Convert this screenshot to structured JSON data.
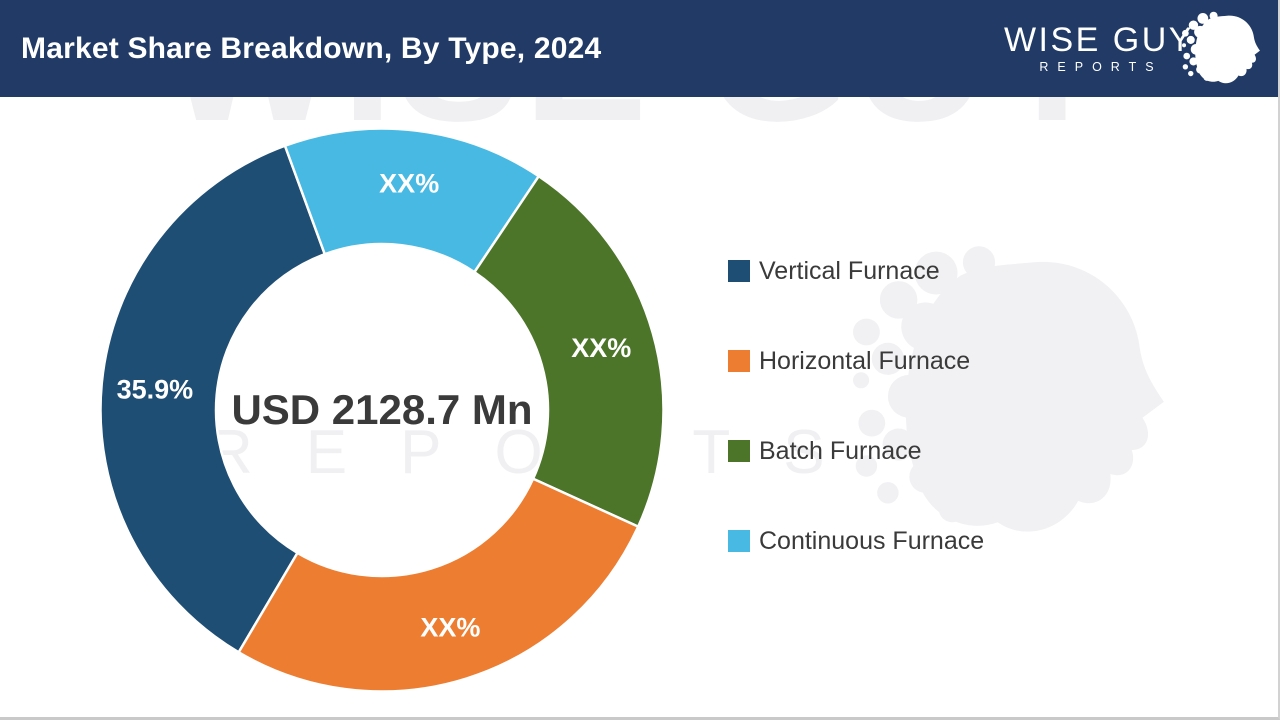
{
  "header": {
    "title": "Market Share Breakdown, By Type, 2024",
    "logo": {
      "line1": "WISE GUY",
      "line2": "REPORTS"
    }
  },
  "watermark": {
    "line1": "WISE GUY",
    "line2": "REPORTS"
  },
  "chart_data": {
    "type": "pie",
    "subtype": "donut",
    "title": "Market Share Breakdown, By Type, 2024",
    "center_label": "USD 2128.7 Mn",
    "legend_position": "right",
    "start_angle_deg": 210.6,
    "draw_order": [
      0,
      3,
      2,
      1
    ],
    "segments": [
      {
        "label": "Vertical Furnace",
        "value": 35.9,
        "display": "35.9%",
        "color": "#1F4E74"
      },
      {
        "label": "Horizontal Furnace",
        "value": 26.7,
        "display": "XX%",
        "color": "#ED7D31"
      },
      {
        "label": "Batch Furnace",
        "value": 22.4,
        "display": "XX%",
        "color": "#4C7529"
      },
      {
        "label": "Continuous Furnace",
        "value": 15.0,
        "display": "XX%",
        "color": "#47B9E3"
      }
    ]
  },
  "colors": {
    "header_bg": "#213A66",
    "watermark": "#f0f0f3",
    "center_text": "#3a3a3a",
    "slice_gap": "#ffffff"
  }
}
